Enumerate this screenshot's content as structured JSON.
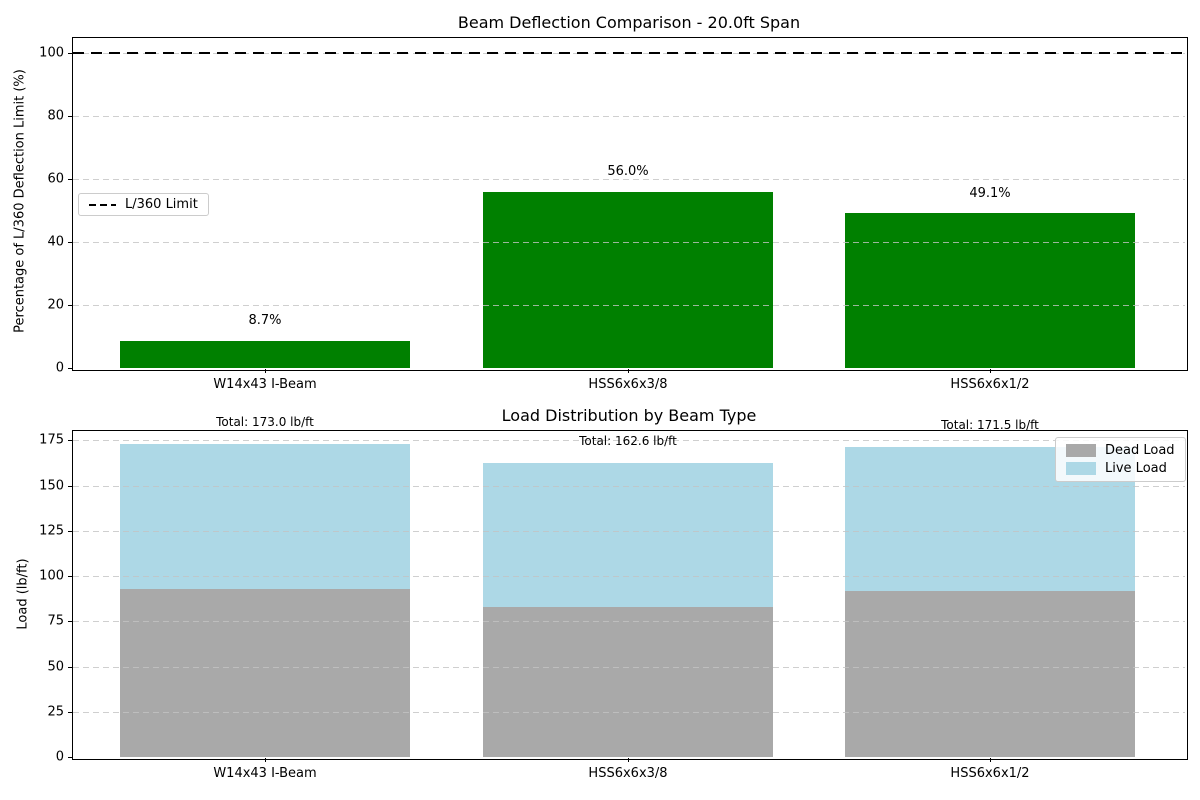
{
  "chart_data": [
    {
      "type": "bar",
      "title": "Beam Deflection Comparison - 20.0ft Span",
      "ylabel": "Percentage of L/360 Deflection Limit (%)",
      "categories": [
        "W14x43 I-Beam",
        "HSS6x6x3/8",
        "HSS6x6x1/2"
      ],
      "values": [
        8.7,
        56.0,
        49.1
      ],
      "bar_labels": [
        "8.7%",
        "56.0%",
        "49.1%"
      ],
      "bar_color": "#008000",
      "yticks": [
        0,
        20,
        40,
        60,
        80,
        100
      ],
      "ylim": [
        0,
        105
      ],
      "grid": true,
      "limit_line": {
        "value": 100,
        "label": "L/360 Limit",
        "color": "#000000",
        "style": "dashed"
      },
      "legend_position": "center-left"
    },
    {
      "type": "stacked-bar",
      "title": "Load Distribution by Beam Type",
      "ylabel": "Load (lb/ft)",
      "categories": [
        "W14x43 I-Beam",
        "HSS6x6x3/8",
        "HSS6x6x1/2"
      ],
      "series": [
        {
          "name": "Dead Load",
          "color": "#a9a9a9",
          "values": [
            93.0,
            82.6,
            91.5
          ]
        },
        {
          "name": "Live Load",
          "color": "#add8e6",
          "values": [
            80.0,
            80.0,
            80.0
          ]
        }
      ],
      "total_values": [
        173.0,
        162.6,
        171.5
      ],
      "total_labels": [
        "Total: 173.0 lb/ft",
        "Total: 162.6 lb/ft",
        "Total: 171.5 lb/ft"
      ],
      "yticks": [
        0,
        25,
        50,
        75,
        100,
        125,
        150,
        175
      ],
      "ylim": [
        0,
        181.65
      ],
      "grid": true,
      "legend_position": "upper-right"
    }
  ]
}
